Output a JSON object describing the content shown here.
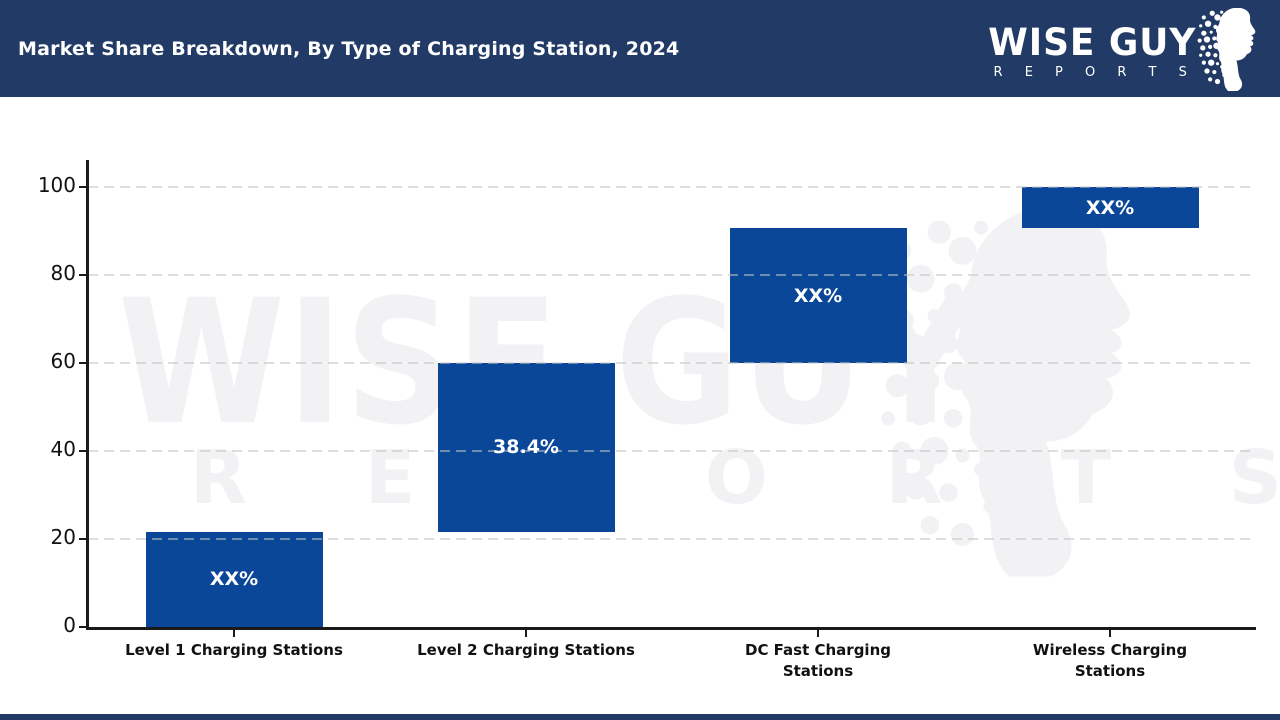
{
  "header": {
    "title": "Market Share Breakdown, By Type of Charging Station, 2024",
    "brand_name": "WISE GUY",
    "brand_sub": "R E P O R T S"
  },
  "watermark": {
    "line1": "WISE GUY",
    "line2": "R E P O R T S"
  },
  "chart_data": {
    "type": "bar",
    "subtype": "waterfall",
    "title": "Market Share Breakdown, By Type of Charging Station, 2024",
    "xlabel": "",
    "ylabel": "",
    "categories": [
      "Level 1 Charging Stations",
      "Level 2 Charging Stations",
      "DC Fast Charging Stations",
      "Wireless Charging Stations"
    ],
    "segments": [
      {
        "category": "Level 1 Charging Stations",
        "start": 0,
        "end": 21.6,
        "label": "XX%"
      },
      {
        "category": "Level 2 Charging Stations",
        "start": 21.6,
        "end": 60,
        "label": "38.4%"
      },
      {
        "category": "DC Fast Charging Stations",
        "start": 60,
        "end": 90.6,
        "label": "XX%"
      },
      {
        "category": "Wireless Charging Stations",
        "start": 90.6,
        "end": 100,
        "label": "XX%"
      }
    ],
    "yticks": [
      0,
      20,
      40,
      60,
      80,
      100
    ],
    "ylim": [
      0,
      105
    ],
    "grid": "horizontal-dashed",
    "legend": "none",
    "colors": {
      "bar": "#0b4798",
      "bar_label": "#ffffff",
      "axis": "#1a1a1a",
      "grid": "#e1e1e1",
      "header_bg": "#223a66",
      "header_text": "#ffffff",
      "watermark": "#f2f2f4"
    }
  }
}
